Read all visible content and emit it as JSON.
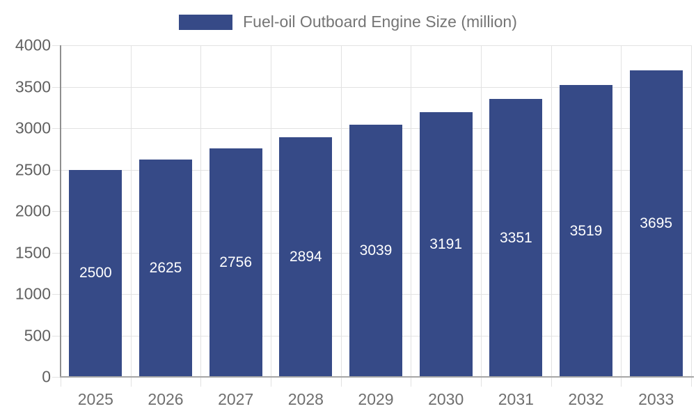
{
  "legend": {
    "label": "Fuel-oil Outboard Engine Size (million)"
  },
  "chart_data": {
    "type": "bar",
    "title": "Fuel-oil Outboard Engine Size (million)",
    "categories": [
      "2025",
      "2026",
      "2027",
      "2028",
      "2029",
      "2030",
      "2031",
      "2032",
      "2033"
    ],
    "values": [
      2500,
      2625,
      2756,
      2894,
      3039,
      3191,
      3351,
      3519,
      3695
    ],
    "xlabel": "",
    "ylabel": "",
    "ylim": [
      0,
      4000
    ],
    "yticks": [
      0,
      500,
      1000,
      1500,
      2000,
      2500,
      3000,
      3500,
      4000
    ],
    "grid": true,
    "legend_position": "top",
    "bar_color": "#364a87",
    "value_label_color": "#ffffff",
    "grid_color": "#e2e2e2",
    "axis_color": "#8f8f8f",
    "tick_label_color": "#616161"
  }
}
